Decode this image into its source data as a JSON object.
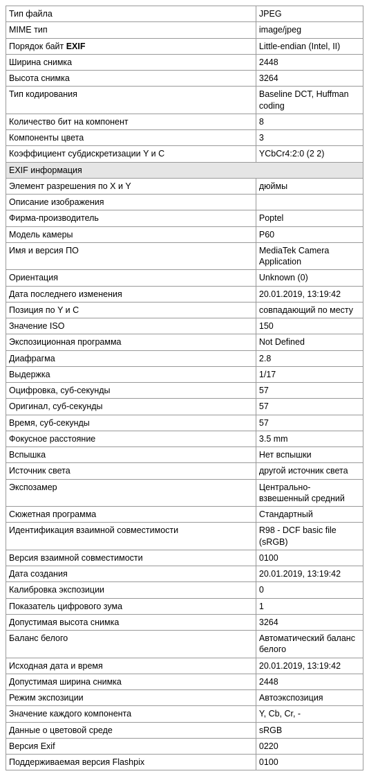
{
  "colors": {
    "border": "#999",
    "section_bg": "#e5e5e5",
    "text": "#000",
    "bg": "#fff"
  },
  "section1": {
    "rows": [
      {
        "label": "Тип файла",
        "value": "JPEG"
      },
      {
        "label": "MIME тип",
        "value": "image/jpeg"
      },
      {
        "label_html": "Порядок байт <b>EXIF</b>",
        "label_plain": "Порядок байт ",
        "label_bold": "EXIF",
        "value": "Little-endian (Intel, II)"
      },
      {
        "label": "Ширина снимка",
        "value": "2448"
      },
      {
        "label": "Высота снимка",
        "value": "3264"
      },
      {
        "label": "Тип кодирования",
        "value": "Baseline DCT, Huffman coding"
      },
      {
        "label": "Количество бит на компонент",
        "value": "8"
      },
      {
        "label": "Компоненты цвета",
        "value": "3"
      },
      {
        "label": "Коэффициент субдискретизации Y и C",
        "value": "YCbCr4:2:0 (2 2)"
      }
    ]
  },
  "section_header": {
    "label": "EXIF информация"
  },
  "section2": {
    "rows": [
      {
        "label": "Элемент разрешения по X и Y",
        "value": "дюймы"
      },
      {
        "label": "Описание изображения",
        "value": ""
      },
      {
        "label": "Фирма-производитель",
        "value": "Poptel"
      },
      {
        "label": "Модель камеры",
        "value": "P60"
      },
      {
        "label": "Имя и версия ПО",
        "value": "MediaTek Camera Application"
      },
      {
        "label": "Ориентация",
        "value": "Unknown (0)"
      },
      {
        "label": "Дата последнего изменения",
        "value": "20.01.2019, 13:19:42"
      },
      {
        "label": "Позиция по Y и C",
        "value": "совпадающий по месту"
      },
      {
        "label": "Значение ISO",
        "value": "150"
      },
      {
        "label": "Экспозиционная программа",
        "value": "Not Defined"
      },
      {
        "label": "Диафрагма",
        "value": "2.8"
      },
      {
        "label": "Выдержка",
        "value": "1/17"
      },
      {
        "label": "Оцифровка, суб-секунды",
        "value": "57"
      },
      {
        "label": "Оригинал, суб-секунды",
        "value": "57"
      },
      {
        "label": "Время, суб-секунды",
        "value": "57"
      },
      {
        "label": "Фокусное расстояние",
        "value": "3.5 mm"
      },
      {
        "label": "Вспышка",
        "value": "Нет вспышки"
      },
      {
        "label": "Источник света",
        "value": "другой источник света"
      },
      {
        "label": "Экспозамер",
        "value": "Центрально-взвешенный средний"
      },
      {
        "label": "Сюжетная программа",
        "value": "Стандартный"
      },
      {
        "label": "Идентификация взаимной совместимости",
        "value": "R98 - DCF basic file (sRGB)"
      },
      {
        "label": "Версия взаимной совместимости",
        "value": "0100"
      },
      {
        "label": "Дата создания",
        "value": "20.01.2019, 13:19:42"
      },
      {
        "label": "Калибровка экспозиции",
        "value": "0"
      },
      {
        "label": "Показатель цифрового зума",
        "value": "1"
      },
      {
        "label": "Допустимая высота снимка",
        "value": "3264"
      },
      {
        "label": "Баланс белого",
        "value": "Автоматический баланс белого"
      },
      {
        "label": "Исходная дата и время",
        "value": "20.01.2019, 13:19:42"
      },
      {
        "label": "Допустимая ширина снимка",
        "value": "2448"
      },
      {
        "label": "Режим экспозиции",
        "value": "Автоэкспозиция"
      },
      {
        "label": "Значение каждого компонента",
        "value": "Y, Cb, Cr, -"
      },
      {
        "label": "Данные о цветовой среде",
        "value": "sRGB"
      },
      {
        "label": "Версия Exif",
        "value": "0220"
      },
      {
        "label": "Поддерживаемая версия Flashpix",
        "value": "0100"
      }
    ]
  }
}
